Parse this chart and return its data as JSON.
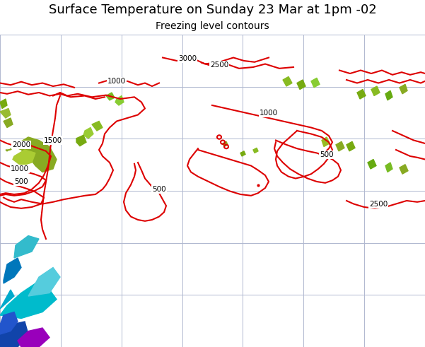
{
  "title": "Surface Temperature on Sunday 23 Mar at 1pm -02",
  "subtitle": "Freezing level contours",
  "title_fontsize": 13,
  "subtitle_fontsize": 10,
  "bg_color_map": "#dde3f0",
  "bg_color_title": "#ffffff",
  "grid_color": "#b0b8d0",
  "contour_color": "#dd0000",
  "contour_linewidth": 1.5,
  "figsize": [
    6.01,
    4.91
  ],
  "dpi": 100
}
